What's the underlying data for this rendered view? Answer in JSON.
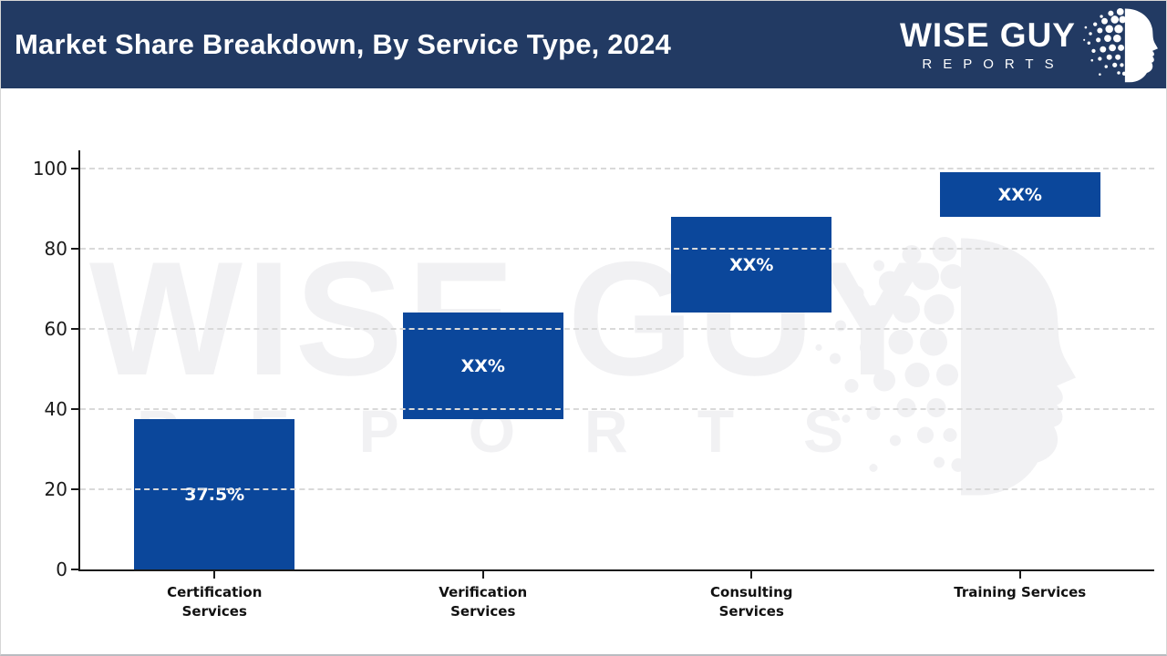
{
  "header": {
    "title": "Market Share Breakdown, By Service Type, 2024",
    "logo": {
      "wordmark": "WISE GUY",
      "subtitle": "REPORTS"
    },
    "bg_color": "#223a63"
  },
  "watermark": {
    "wordmark": "WISE GUY",
    "subtitle": "REPORTS"
  },
  "chart_data": {
    "type": "bar",
    "subtype": "waterfall",
    "title": "Market Share Breakdown, By Service Type, 2024",
    "categories": [
      "Certification\nServices",
      "Verification\nServices",
      "Consulting\nServices",
      "Training Services"
    ],
    "series": [
      {
        "name": "Certification Services",
        "start": 0,
        "end": 37.5,
        "label": "37.5%"
      },
      {
        "name": "Verification Services",
        "start": 37.5,
        "end": 64,
        "label": "XX%"
      },
      {
        "name": "Consulting Services",
        "start": 64,
        "end": 88,
        "label": "XX%"
      },
      {
        "name": "Training Services",
        "start": 88,
        "end": 99,
        "label": "XX%"
      }
    ],
    "xlabel": "",
    "ylabel": "",
    "yticks": [
      0,
      20,
      40,
      60,
      80,
      100
    ],
    "ylim": [
      0,
      105
    ],
    "grid": "horizontal-dashed",
    "legend": "none",
    "colors": {
      "bar": "#0b479b",
      "bar_label": "#ffffff",
      "grid": "#d9d9d9",
      "axis": "#1a1a1a"
    }
  }
}
